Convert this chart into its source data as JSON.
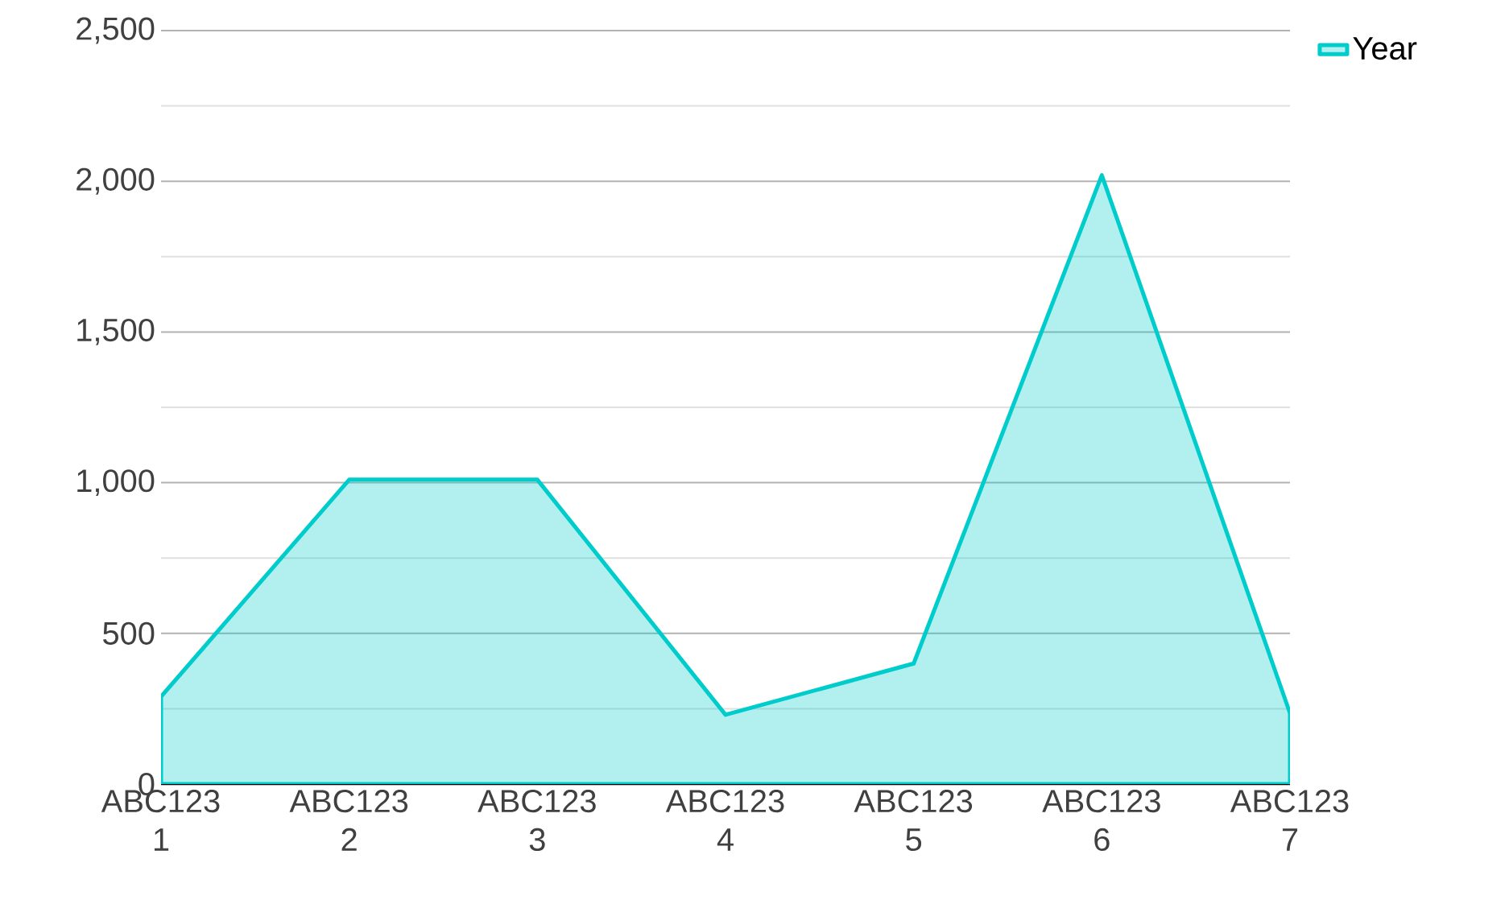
{
  "chart_data": {
    "type": "area",
    "categories": [
      "ABC123 1",
      "ABC123 2",
      "ABC123 3",
      "ABC123 4",
      "ABC123 5",
      "ABC123 6",
      "ABC123 7"
    ],
    "series": [
      {
        "name": "Year",
        "color": "#00cccc",
        "values": [
          290,
          1010,
          1010,
          230,
          400,
          2020,
          235
        ]
      }
    ],
    "ylim": [
      0,
      2500
    ],
    "yticks": [
      0,
      {
        "value": 250,
        "label": null
      },
      {
        "value": 500,
        "label": "500"
      },
      {
        "value": 750,
        "label": null
      },
      {
        "value": 1000,
        "label": "1,000"
      },
      {
        "value": 1250,
        "label": null
      },
      {
        "value": 1500,
        "label": "1,500"
      },
      {
        "value": 1750,
        "label": null
      },
      {
        "value": 2000,
        "label": "2,000"
      },
      {
        "value": 2250,
        "label": null
      },
      {
        "value": 2500,
        "label": "2,500"
      }
    ],
    "grid": "y",
    "legend": "top right"
  }
}
